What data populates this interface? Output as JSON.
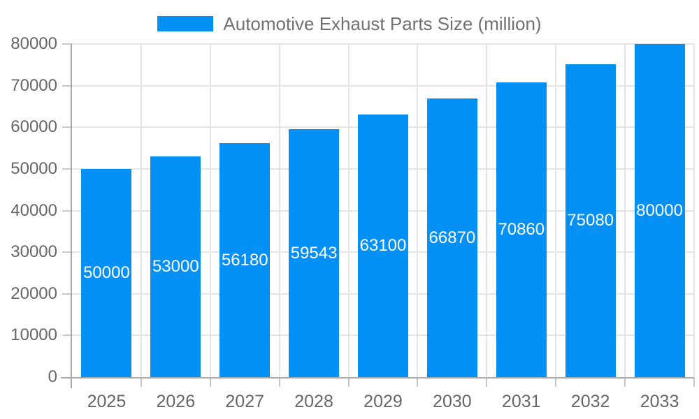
{
  "legend": {
    "label": "Automotive Exhaust Parts Size (million)"
  },
  "chart_data": {
    "type": "bar",
    "title": "Automotive Exhaust Parts Size (million)",
    "categories": [
      "2025",
      "2026",
      "2027",
      "2028",
      "2029",
      "2030",
      "2031",
      "2032",
      "2033"
    ],
    "values": [
      50000,
      53000,
      56180,
      59543,
      63100,
      66870,
      70860,
      75080,
      80000
    ],
    "xlabel": "",
    "ylabel": "",
    "ylim": [
      0,
      80000
    ],
    "ytick_step": 10000,
    "yticks": [
      0,
      10000,
      20000,
      30000,
      40000,
      50000,
      60000,
      70000,
      80000
    ],
    "grid": true,
    "legend_position": "top-center",
    "bar_value_labels_shown": true
  },
  "colors": {
    "bar": "#0590f5",
    "grid": "#e4e4e4",
    "axis": "#a8a8a8",
    "tick": "#c9c9c9",
    "axis_text": "#666666",
    "legend_text": "#707174",
    "value_label": "#ffffff",
    "background": "#ffffff"
  }
}
